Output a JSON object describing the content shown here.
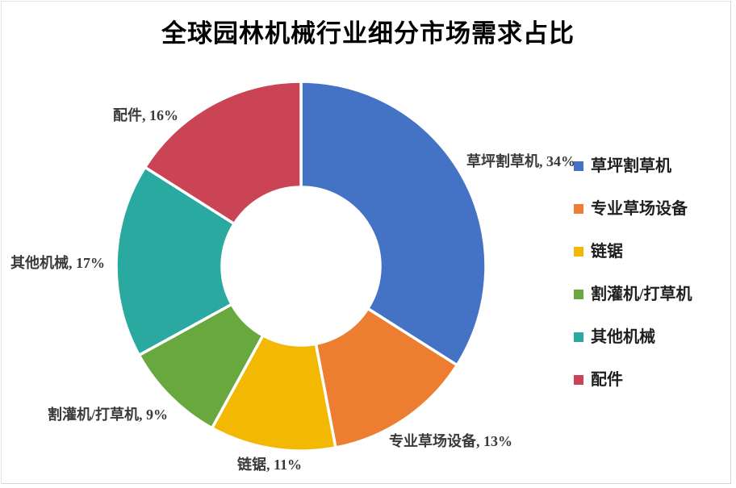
{
  "chart_data": {
    "type": "pie",
    "subtype": "donut",
    "title": "全球园林机械行业细分市场需求占比",
    "unit": "%",
    "legend_position": "right",
    "grid": false,
    "categories": [
      "草坪割草机",
      "专业草场设备",
      "链锯",
      "割灌机/打草机",
      "其他机械",
      "配件"
    ],
    "values": [
      34,
      13,
      11,
      9,
      17,
      16
    ],
    "slices": [
      {
        "label": "草坪割草机",
        "value": 34,
        "data_label": "草坪割草机, 34%",
        "color": "#4472C4"
      },
      {
        "label": "专业草场设备",
        "value": 13,
        "data_label": "专业草场设备, 13%",
        "color": "#ED7D31"
      },
      {
        "label": "链锯",
        "value": 11,
        "data_label": "链锯, 11%",
        "color": "#F2B802"
      },
      {
        "label": "割灌机/打草机",
        "value": 9,
        "data_label": "割灌机/打草机, 9%",
        "color": "#69A83E"
      },
      {
        "label": "其他机械",
        "value": 17,
        "data_label": "其他机械, 17%",
        "color": "#2AA9A0"
      },
      {
        "label": "配件",
        "value": 16,
        "data_label": "配件, 16%",
        "color": "#CB4455"
      }
    ]
  }
}
